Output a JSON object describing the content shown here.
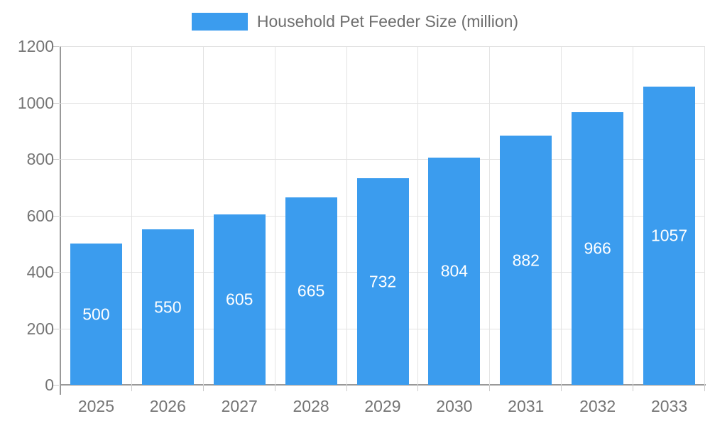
{
  "legend": {
    "label": "Household Pet Feeder Size (million)"
  },
  "colors": {
    "bar": "#3b9cee",
    "axis_line": "#999999",
    "grid_line": "#e3e3e3",
    "tick": "#cccccc",
    "axis_text": "#757575",
    "legend_text": "#6e6e6e",
    "value_label": "#ffffff",
    "background": "#ffffff"
  },
  "chart_data": {
    "type": "bar",
    "title": "Household Pet Feeder Size (million)",
    "categories": [
      "2025",
      "2026",
      "2027",
      "2028",
      "2029",
      "2030",
      "2031",
      "2032",
      "2033"
    ],
    "values": [
      500,
      550,
      605,
      665,
      732,
      804,
      882,
      966,
      1057
    ],
    "xlabel": "",
    "ylabel": "",
    "ylim": [
      0,
      1200
    ],
    "yticks": [
      0,
      200,
      400,
      600,
      800,
      1000,
      1200
    ],
    "grid": true,
    "legend_position": "top-center",
    "value_label_position": "inside-center"
  }
}
